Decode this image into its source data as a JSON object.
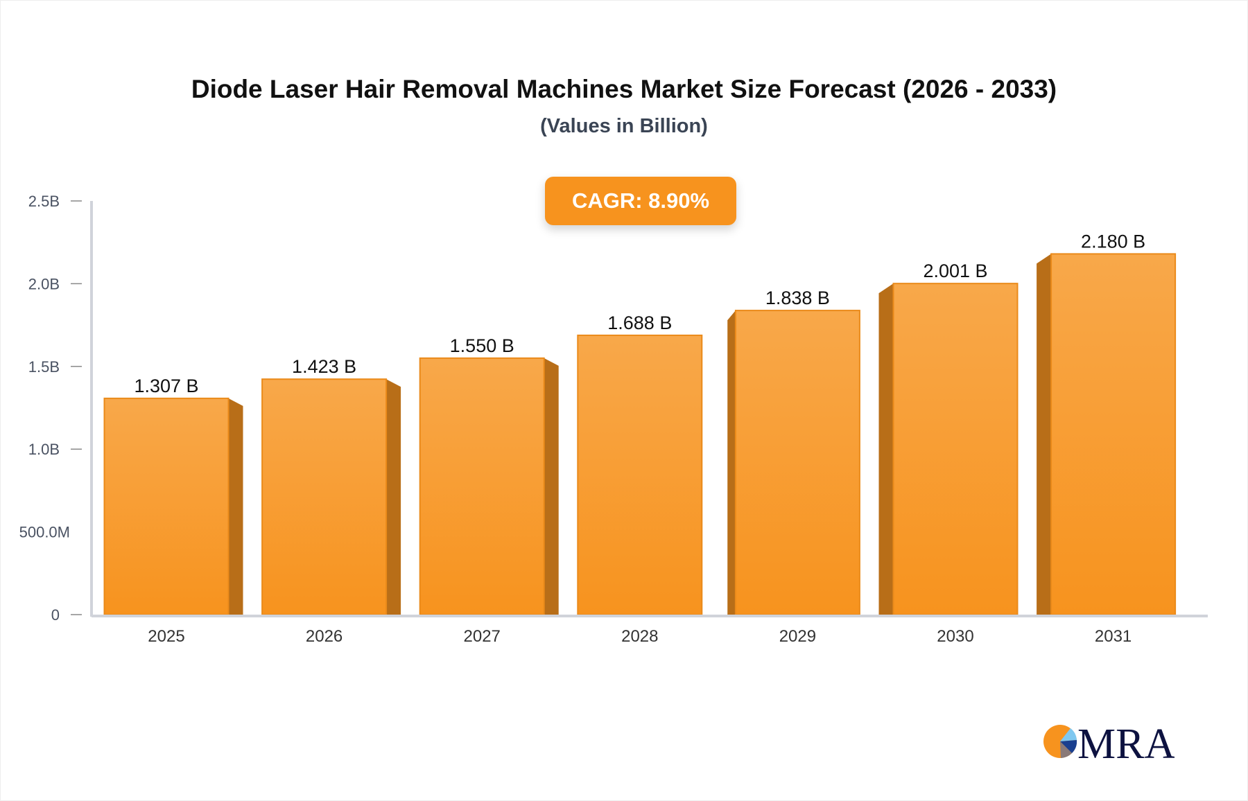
{
  "chart_data": {
    "type": "bar",
    "title": "Diode Laser Hair Removal Machines Market Size Forecast (2026 - 2033)",
    "subtitle": "(Values in Billion)",
    "annotation": "CAGR: 8.90%",
    "categories": [
      "2025",
      "2026",
      "2027",
      "2028",
      "2029",
      "2030",
      "2031"
    ],
    "values": [
      1.307,
      1.423,
      1.55,
      1.688,
      1.838,
      2.001,
      2.18
    ],
    "data_labels": [
      "1.307 B",
      "1.423 B",
      "1.550 B",
      "1.688 B",
      "1.838 B",
      "2.001 B",
      "2.180 B"
    ],
    "yticks": [
      0,
      0.5,
      1.0,
      1.5,
      2.0,
      2.5
    ],
    "ytick_labels": [
      "0",
      "500.0M",
      "1.0B",
      "1.5B",
      "2.0B",
      "2.5B"
    ],
    "ylim": [
      0,
      2.5
    ],
    "xlabel": "",
    "ylabel": "",
    "grid": false,
    "colors": {
      "bar_top": "#f8a84a",
      "bar_bottom": "#f7931e",
      "bar_side": "#b86e18",
      "axis": "#d0d3da"
    }
  },
  "logo": {
    "text": "MRA",
    "colors": {
      "orange": "#f7931e",
      "navy": "#0d1240",
      "light_blue": "#7fc8f0",
      "blue": "#1a3f8f",
      "gray": "#8a7a78"
    }
  }
}
